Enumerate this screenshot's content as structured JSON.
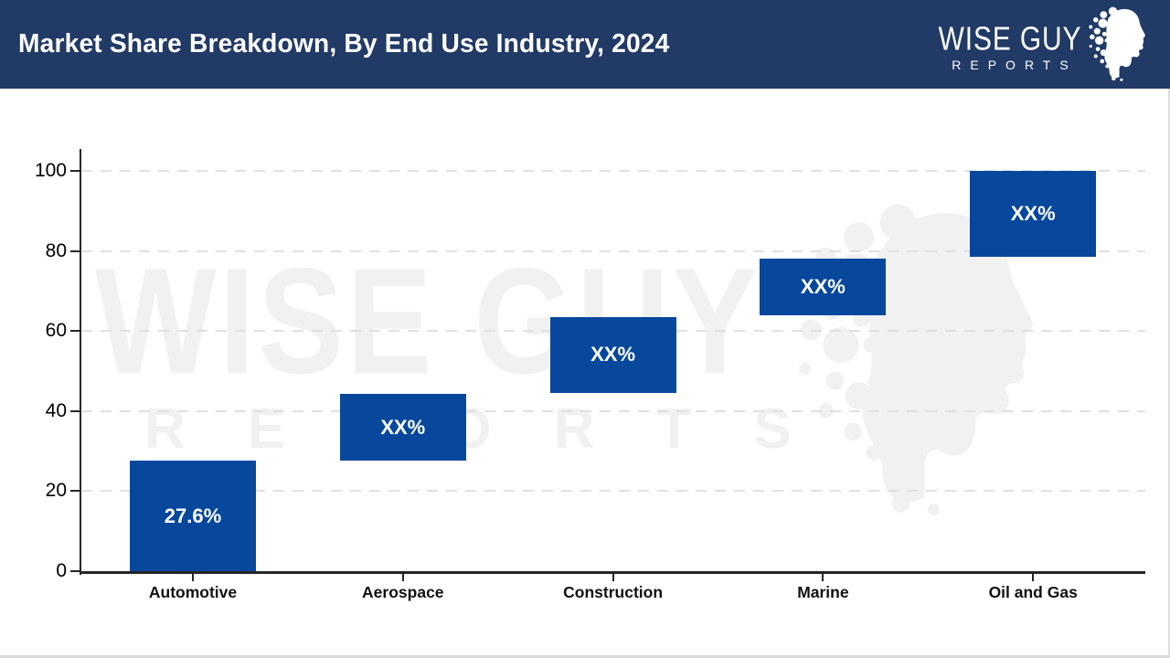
{
  "header": {
    "title": "Market Share Breakdown, By End Use Industry, 2024",
    "logo": {
      "line1": "WISE GUY",
      "line2": "REPORTS"
    }
  },
  "watermark": {
    "line1": "WISE GUY",
    "line2": "REPORTS"
  },
  "colors": {
    "header_bg": "#213a66",
    "bar": "#07489c",
    "bar_label": "#ffffff",
    "watermark": "#f1f1f2",
    "gridline": "#e0e0e0",
    "axis": "#262626"
  },
  "chart_data": {
    "type": "bar",
    "subtype": "waterfall",
    "title": "Market Share Breakdown, By End Use Industry, 2024",
    "categories": [
      "Automotive",
      "Aerospace",
      "Construction",
      "Marine",
      "Oil and Gas"
    ],
    "series": [
      {
        "name": "Market Share",
        "segments": [
          {
            "category": "Automotive",
            "start": 0,
            "end": 27.6,
            "label": "27.6%"
          },
          {
            "category": "Aerospace",
            "start": 27.6,
            "end": 44.3,
            "label": "XX%"
          },
          {
            "category": "Construction",
            "start": 44.5,
            "end": 63.5,
            "label": "XX%"
          },
          {
            "category": "Marine",
            "start": 63.9,
            "end": 78.1,
            "label": "XX%"
          },
          {
            "category": "Oil and Gas",
            "start": 78.5,
            "end": 100,
            "label": "XX%"
          }
        ]
      }
    ],
    "xlabel": "",
    "ylabel": "",
    "ylim": [
      0,
      100
    ],
    "yticks": [
      0,
      20,
      40,
      60,
      80,
      100
    ],
    "grid": "horizontal-dashed",
    "legend": "none"
  }
}
